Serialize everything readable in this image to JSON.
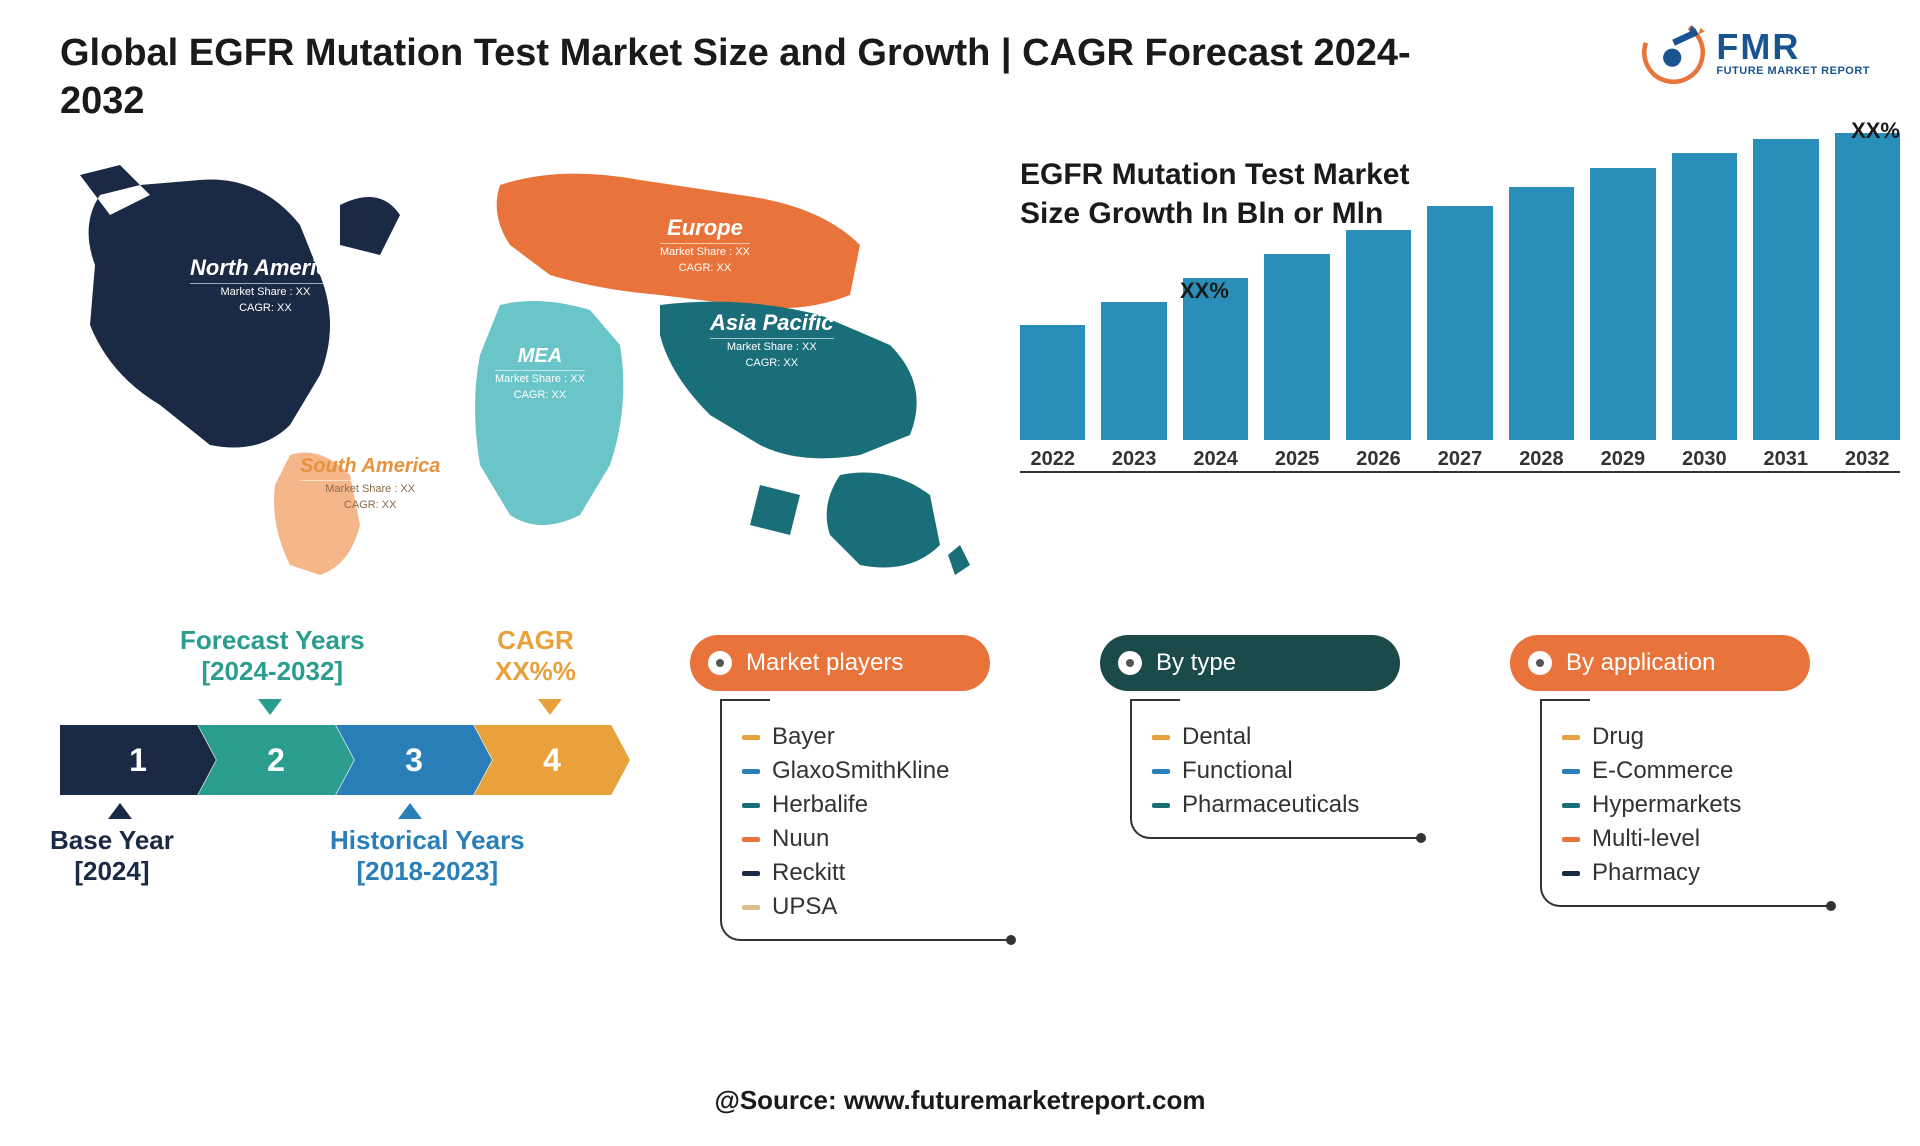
{
  "title": "Global EGFR Mutation Test Market Size and Growth | CAGR Forecast 2024-2032",
  "logo": {
    "abbr": "FMR",
    "sub": "FUTURE MARKET REPORT"
  },
  "map": {
    "regions": [
      {
        "name": "North America",
        "share": "Market Share : XX",
        "cagr": "CAGR: XX",
        "color": "#1a2a44"
      },
      {
        "name": "South America",
        "share": "Market Share : XX",
        "cagr": "CAGR: XX",
        "color": "#f5b78a",
        "label_color": "#e8923e"
      },
      {
        "name": "Europe",
        "share": "Market Share : XX",
        "cagr": "CAGR: XX",
        "color": "#e8743b"
      },
      {
        "name": "MEA",
        "share": "Market Share : XX",
        "cagr": "CAGR: XX",
        "color": "#6ac5c9"
      },
      {
        "name": "Asia Pacific",
        "share": "Market Share : XX",
        "cagr": "CAGR: XX",
        "color": "#1a6e7a"
      }
    ]
  },
  "chart": {
    "title": "EGFR Mutation Test Market Size Growth In Bln or Mln",
    "type": "bar",
    "bar_color": "#2a8fb8",
    "axis_color": "#333333",
    "years": [
      "2022",
      "2023",
      "2024",
      "2025",
      "2026",
      "2027",
      "2028",
      "2029",
      "2030",
      "2031",
      "2032"
    ],
    "values": [
      120,
      145,
      170,
      195,
      220,
      245,
      265,
      285,
      300,
      315,
      335
    ],
    "annot_2024": "XX%",
    "annot_2032": "XX%"
  },
  "timeline": {
    "forecast": {
      "label": "Forecast Years",
      "range": "[2024-2032]",
      "color": "#2a9d8f"
    },
    "cagr": {
      "label": "CAGR",
      "value": "XX%%",
      "color": "#e9a13b"
    },
    "base": {
      "label": "Base Year",
      "range": "[2024]",
      "color": "#1a2a44"
    },
    "historical": {
      "label": "Historical Years",
      "range": "[2018-2023]",
      "color": "#2a7fb8"
    },
    "segments": [
      {
        "num": "1",
        "color": "#1a2a44"
      },
      {
        "num": "2",
        "color": "#2a9d8f"
      },
      {
        "num": "3",
        "color": "#2a7fb8"
      },
      {
        "num": "4",
        "color": "#e9a13b"
      }
    ]
  },
  "pills": {
    "players": {
      "label": "Market players",
      "color": "#e8743b",
      "items": [
        {
          "t": "Bayer",
          "c": "#e9a13b"
        },
        {
          "t": "GlaxoSmithKline",
          "c": "#2a7fb8"
        },
        {
          "t": "Herbalife",
          "c": "#1a6e7a"
        },
        {
          "t": "Nuun",
          "c": "#e8743b"
        },
        {
          "t": "Reckitt",
          "c": "#1a2a44"
        },
        {
          "t": "UPSA",
          "c": "#d9c08a"
        }
      ]
    },
    "type": {
      "label": "By type",
      "color": "#1a4a4a",
      "items": [
        {
          "t": "Dental",
          "c": "#e9a13b"
        },
        {
          "t": "Functional",
          "c": "#2a7fb8"
        },
        {
          "t": "Pharmaceuticals",
          "c": "#1a6e7a"
        }
      ]
    },
    "application": {
      "label": "By application",
      "color": "#e8743b",
      "items": [
        {
          "t": "Drug",
          "c": "#e9a13b"
        },
        {
          "t": "E-Commerce",
          "c": "#2a7fb8"
        },
        {
          "t": "Hypermarkets",
          "c": "#1a6e7a"
        },
        {
          "t": "Multi-level",
          "c": "#e8743b"
        },
        {
          "t": "Pharmacy",
          "c": "#1a2a44"
        }
      ]
    }
  },
  "source": "@Source: www.futuremarketreport.com"
}
